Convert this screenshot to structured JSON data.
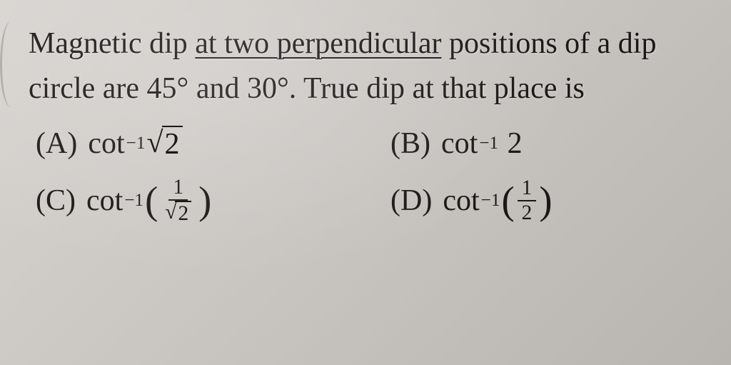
{
  "question": {
    "text_part1": "Magnetic dip ",
    "text_underlined": "at two perpendicular",
    "text_part2": " positions of a dip circle are 45° and 30°. True dip at that place is"
  },
  "options": {
    "a": {
      "label": "(A)",
      "func": "cot",
      "superscript": "−1",
      "sqrt_content": "2"
    },
    "b": {
      "label": "(B)",
      "func": "cot",
      "superscript": "−1",
      "value": "2"
    },
    "c": {
      "label": "(C)",
      "func": "cot",
      "superscript": "−1",
      "numerator": "1",
      "denom_sqrt": "2"
    },
    "d": {
      "label": "(D)",
      "func": "cot",
      "superscript": "−1",
      "numerator": "1",
      "denominator": "2"
    }
  },
  "styling": {
    "background_gradient_start": "#d8d4d0",
    "background_gradient_end": "#b8b4b0",
    "text_color": "#1a1816",
    "font_family": "Georgia, Times New Roman, serif",
    "question_fontsize": 42,
    "option_fontsize": 42
  }
}
